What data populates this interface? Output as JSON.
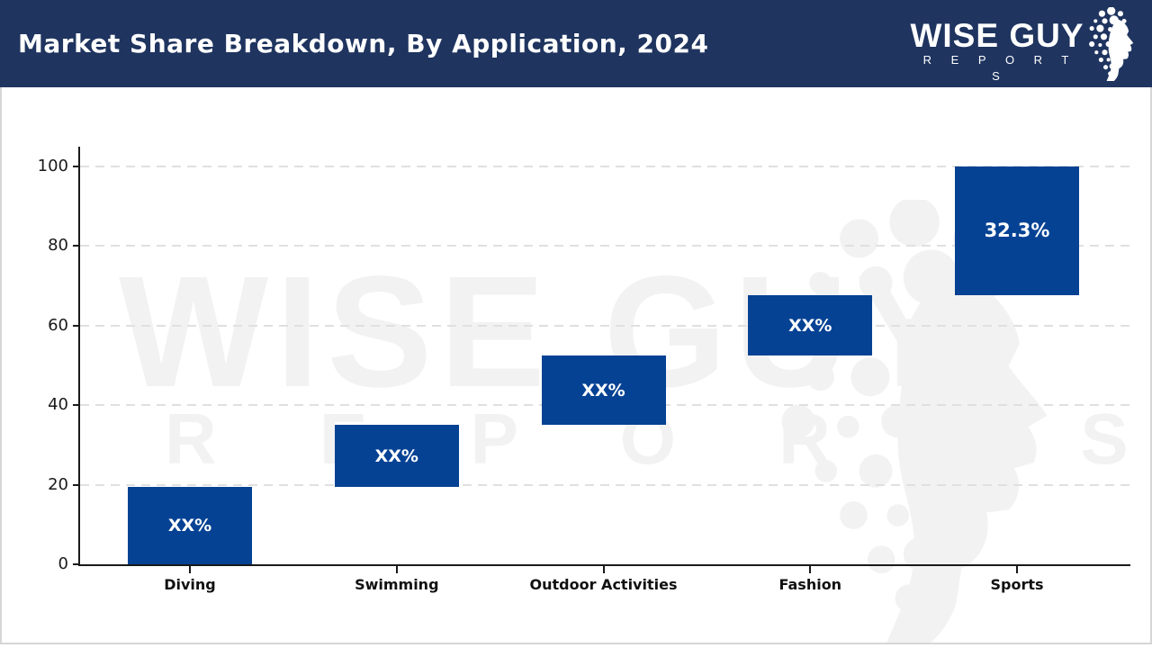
{
  "header": {
    "title": "Market Share Breakdown, By Application, 2024",
    "bg_color": "#1f345f",
    "logo": {
      "line1": "WISE GUY",
      "line2": "R E P O R T S"
    }
  },
  "watermark": {
    "line1": "WISE GUY",
    "line2": "R E P O R T S"
  },
  "chart_data": {
    "type": "bar",
    "subtype": "floating-waterfall",
    "title": "Market Share Breakdown, By Application, 2024",
    "categories": [
      "Diving",
      "Swimming",
      "Outdoor Activities",
      "Fashion",
      "Sports"
    ],
    "bars": [
      {
        "category": "Diving",
        "start": 0,
        "end": 19.4,
        "label": "XX%"
      },
      {
        "category": "Swimming",
        "start": 19.4,
        "end": 35.0,
        "label": "XX%"
      },
      {
        "category": "Outdoor Activities",
        "start": 35.0,
        "end": 52.4,
        "label": "XX%"
      },
      {
        "category": "Fashion",
        "start": 52.4,
        "end": 67.7,
        "label": "XX%"
      },
      {
        "category": "Sports",
        "start": 67.7,
        "end": 100,
        "label": "32.3%",
        "value": 32.3
      }
    ],
    "xlabel": "",
    "ylabel": "",
    "ylim": [
      0,
      104
    ],
    "yticks": [
      0,
      20,
      40,
      60,
      80,
      100
    ],
    "grid": "dashed-horizontal",
    "legend": "none",
    "bar_color": "#054294",
    "bar_label_color": "#ffffff",
    "axis_color": "#1a1a1a",
    "grid_color": "#e0e0e0"
  }
}
